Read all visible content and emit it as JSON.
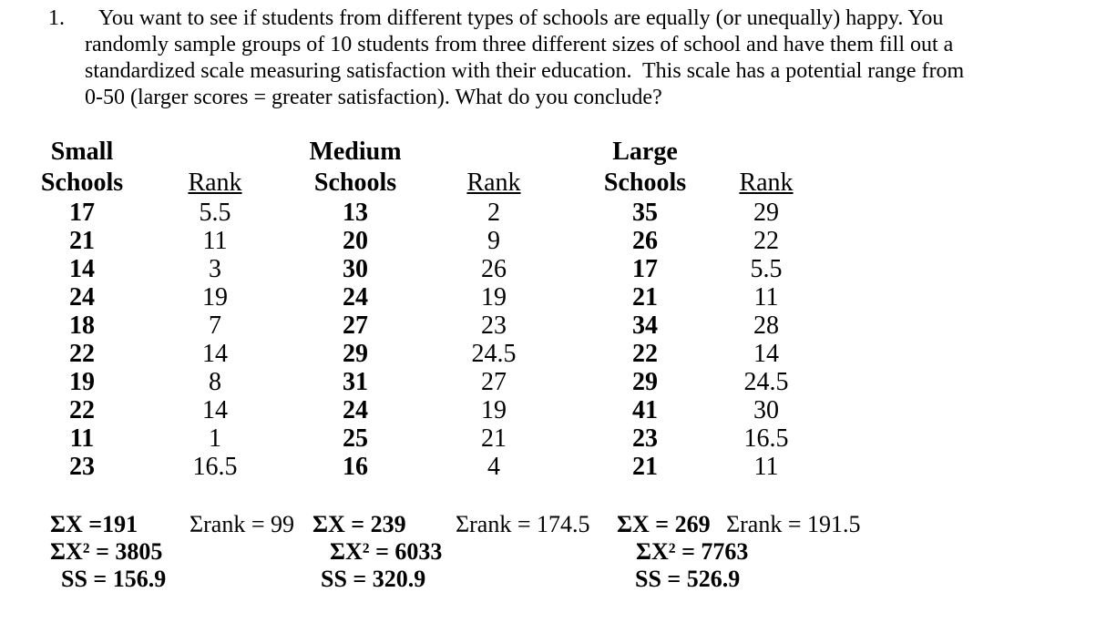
{
  "question": {
    "number": "1.",
    "lines": [
      "You want to see if students from different types of schools are equally (or unequally) happy. You",
      "randomly sample groups of 10 students from three different sizes of school and have them fill out a",
      "standardized scale measuring satisfaction with their education.  This scale has a potential range from",
      "0-50 (larger scores = greater satisfaction). What do you conclude?"
    ]
  },
  "table": {
    "groups": [
      {
        "id": "small",
        "header_line1": "Small",
        "header_line2": "Schools",
        "rank_header": "Rank",
        "values": [
          "17",
          "21",
          "14",
          "24",
          "18",
          "22",
          "19",
          "22",
          "11",
          "23"
        ],
        "ranks": [
          "5.5",
          "11",
          "3",
          "19",
          "7",
          "14",
          "8",
          "14",
          "1",
          "16.5"
        ]
      },
      {
        "id": "medium",
        "header_line1": "Medium",
        "header_line2": "Schools",
        "rank_header": "Rank",
        "values": [
          "13",
          "20",
          "30",
          "24",
          "27",
          "29",
          "31",
          "24",
          "25",
          "16"
        ],
        "ranks": [
          "2",
          "9",
          "26",
          "19",
          "23",
          "24.5",
          "27",
          "19",
          "21",
          "4"
        ]
      },
      {
        "id": "large",
        "header_line1": "Large",
        "header_line2": "Schools",
        "rank_header": "Rank",
        "values": [
          "35",
          "26",
          "17",
          "21",
          "34",
          "22",
          "29",
          "41",
          "23",
          "21"
        ],
        "ranks": [
          "29",
          "22",
          "5.5",
          "11",
          "28",
          "14",
          "24.5",
          "30",
          "16.5",
          "11"
        ]
      }
    ]
  },
  "summary": {
    "small": {
      "sum_x": "ΣX =191",
      "sum_rank": "Σrank = 99",
      "sum_x_sq": "ΣX² = 3805",
      "ss": "SS = 156.9"
    },
    "medium": {
      "sum_x": "ΣX = 239",
      "sum_rank": "Σrank = 174.5",
      "sum_x_sq": "ΣX² = 6033",
      "ss": "SS = 320.9"
    },
    "large": {
      "sum_x": "ΣX = 269",
      "sum_rank": "Σrank = 191.5",
      "sum_x_sq": "ΣX² = 7763",
      "ss": "SS = 526.9"
    }
  }
}
